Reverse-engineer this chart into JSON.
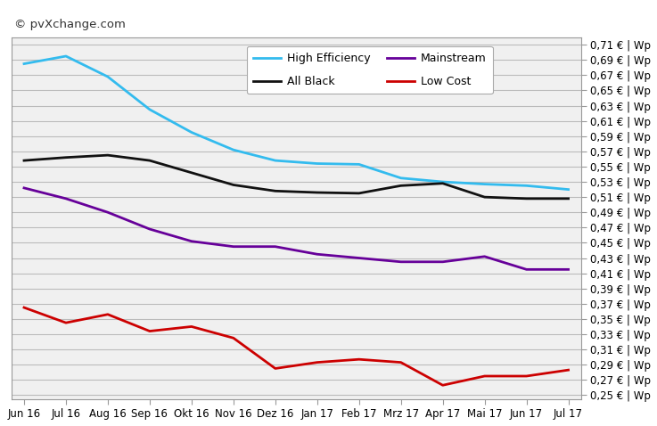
{
  "x_labels": [
    "Jun 16",
    "Jul 16",
    "Aug 16",
    "Sep 16",
    "Okt 16",
    "Nov 16",
    "Dez 16",
    "Jan 17",
    "Feb 17",
    "Mrz 17",
    "Apr 17",
    "Mai 17",
    "Jun 17",
    "Jul 17"
  ],
  "high_efficiency": [
    0.685,
    0.695,
    0.668,
    0.625,
    0.595,
    0.572,
    0.558,
    0.554,
    0.553,
    0.535,
    0.53,
    0.527,
    0.525,
    0.52
  ],
  "all_black": [
    0.558,
    0.562,
    0.565,
    0.558,
    0.542,
    0.526,
    0.518,
    0.516,
    0.515,
    0.525,
    0.528,
    0.51,
    0.508,
    0.508
  ],
  "mainstream": [
    0.522,
    0.508,
    0.49,
    0.468,
    0.452,
    0.445,
    0.445,
    0.435,
    0.43,
    0.425,
    0.425,
    0.432,
    0.415,
    0.415
  ],
  "low_cost": [
    0.365,
    0.345,
    0.356,
    0.334,
    0.34,
    0.325,
    0.285,
    0.293,
    0.297,
    0.293,
    0.263,
    0.275,
    0.275,
    0.283
  ],
  "high_efficiency_color": "#33BBEE",
  "all_black_color": "#111111",
  "mainstream_color": "#660099",
  "low_cost_color": "#CC0000",
  "background_color": "#FFFFFF",
  "plot_bg_color": "#F0F0F0",
  "grid_color": "#BBBBBB",
  "watermark": "© pvXchange.com",
  "y_min": 0.25,
  "y_max": 0.71,
  "y_step": 0.02,
  "legend_entries": [
    "High Efficiency",
    "All Black",
    "Mainstream",
    "Low Cost"
  ]
}
